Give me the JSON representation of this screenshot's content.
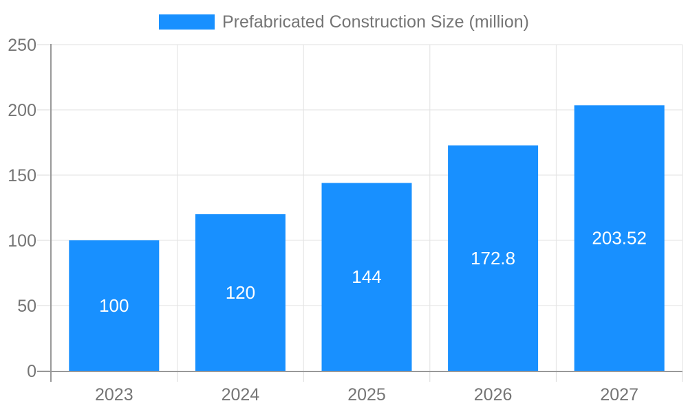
{
  "legend": {
    "position": "top-center",
    "items": [
      {
        "label": "Prefabricated Construction Size (million)",
        "swatch_color": "#1890ff"
      }
    ]
  },
  "colors": {
    "bar": "#1890ff",
    "bar_label": "#ffffff",
    "axis_line": "#999999",
    "grid_line": "#e2e2e2",
    "tick_line": "#d9d9d9",
    "tick_label": "#757575",
    "legend_label": "#757575",
    "background": "#ffffff"
  },
  "chart_data": {
    "type": "bar",
    "title": "Prefabricated Construction Size (million)",
    "categories": [
      "2023",
      "2024",
      "2025",
      "2026",
      "2027"
    ],
    "series": [
      {
        "name": "Prefabricated Construction Size (million)",
        "values": [
          100,
          120,
          144,
          172.8,
          203.52
        ]
      }
    ],
    "bar_labels": [
      "100",
      "120",
      "144",
      "172.8",
      "203.52"
    ],
    "xlabel": "",
    "ylabel": "",
    "ylim": [
      0,
      250
    ],
    "yticks": [
      0,
      50,
      100,
      150,
      200,
      250
    ],
    "grid": true,
    "legend_position": "top"
  }
}
